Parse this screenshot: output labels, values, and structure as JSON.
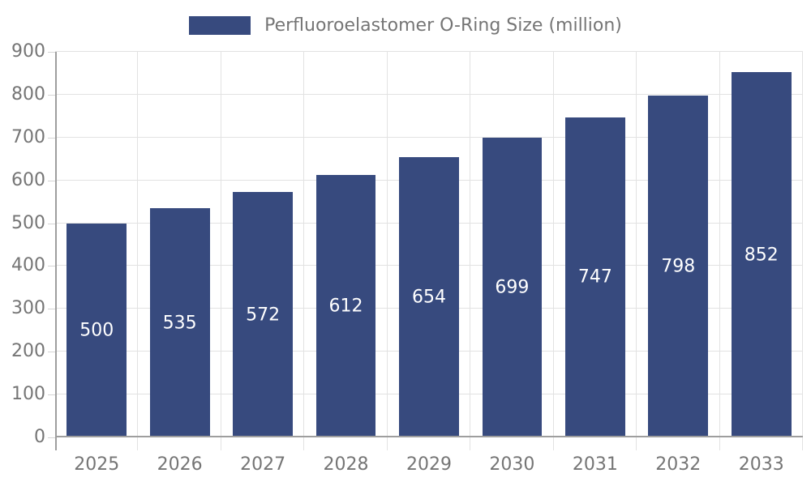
{
  "legend": {
    "label": "Perfluoroelastomer O-Ring Size (million)",
    "swatch_color": "#374A7E"
  },
  "chart_data": {
    "type": "bar",
    "title": "Perfluoroelastomer O-Ring Size (million)",
    "categories": [
      "2025",
      "2026",
      "2027",
      "2028",
      "2029",
      "2030",
      "2031",
      "2032",
      "2033"
    ],
    "values": [
      500,
      535,
      572,
      612,
      654,
      699,
      747,
      798,
      852
    ],
    "series": [
      {
        "name": "Perfluoroelastomer O-Ring Size (million)",
        "values": [
          500,
          535,
          572,
          612,
          654,
          699,
          747,
          798,
          852
        ],
        "color": "#374A7E"
      }
    ],
    "xlabel": "",
    "ylabel": "",
    "ylim": [
      0,
      900
    ],
    "yticks": [
      0,
      100,
      200,
      300,
      400,
      500,
      600,
      700,
      800,
      900
    ],
    "grid": true,
    "legend_position": "top",
    "value_labels_position": "inside-center",
    "colors": {
      "bar": "#374A7E",
      "value_label": "#ffffff",
      "axis_text": "#757575",
      "grid_line": "#e2e2e2",
      "axis_line": "#9e9e9e",
      "tick_mark": "#d4d4d4"
    }
  }
}
